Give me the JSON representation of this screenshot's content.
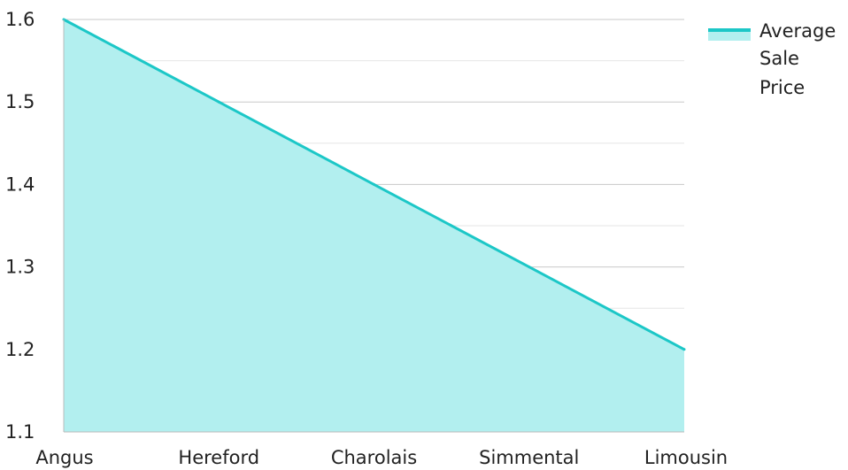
{
  "chart_data": {
    "type": "area",
    "categories": [
      "Angus",
      "Hereford",
      "Charolais",
      "Simmental",
      "Limousin"
    ],
    "series": [
      {
        "name": "Average Sale Price",
        "values": [
          1.6,
          1.5,
          1.4,
          1.3,
          1.2
        ]
      }
    ],
    "y_ticks": [
      "1.1",
      "1.2",
      "1.3",
      "1.4",
      "1.5",
      "1.6"
    ],
    "ylim": [
      1.1,
      1.6
    ],
    "grid": true,
    "legend_position": "top-right",
    "legend_lines": [
      "Average",
      "Sale",
      "Price"
    ],
    "colors": {
      "line": "#1CC7C7",
      "fill": "#B2EFEF",
      "grid_major": "#C8C8C8",
      "grid_minor": "#E6E6E6",
      "axis": "#BBBBBB",
      "text": "#222222"
    }
  }
}
